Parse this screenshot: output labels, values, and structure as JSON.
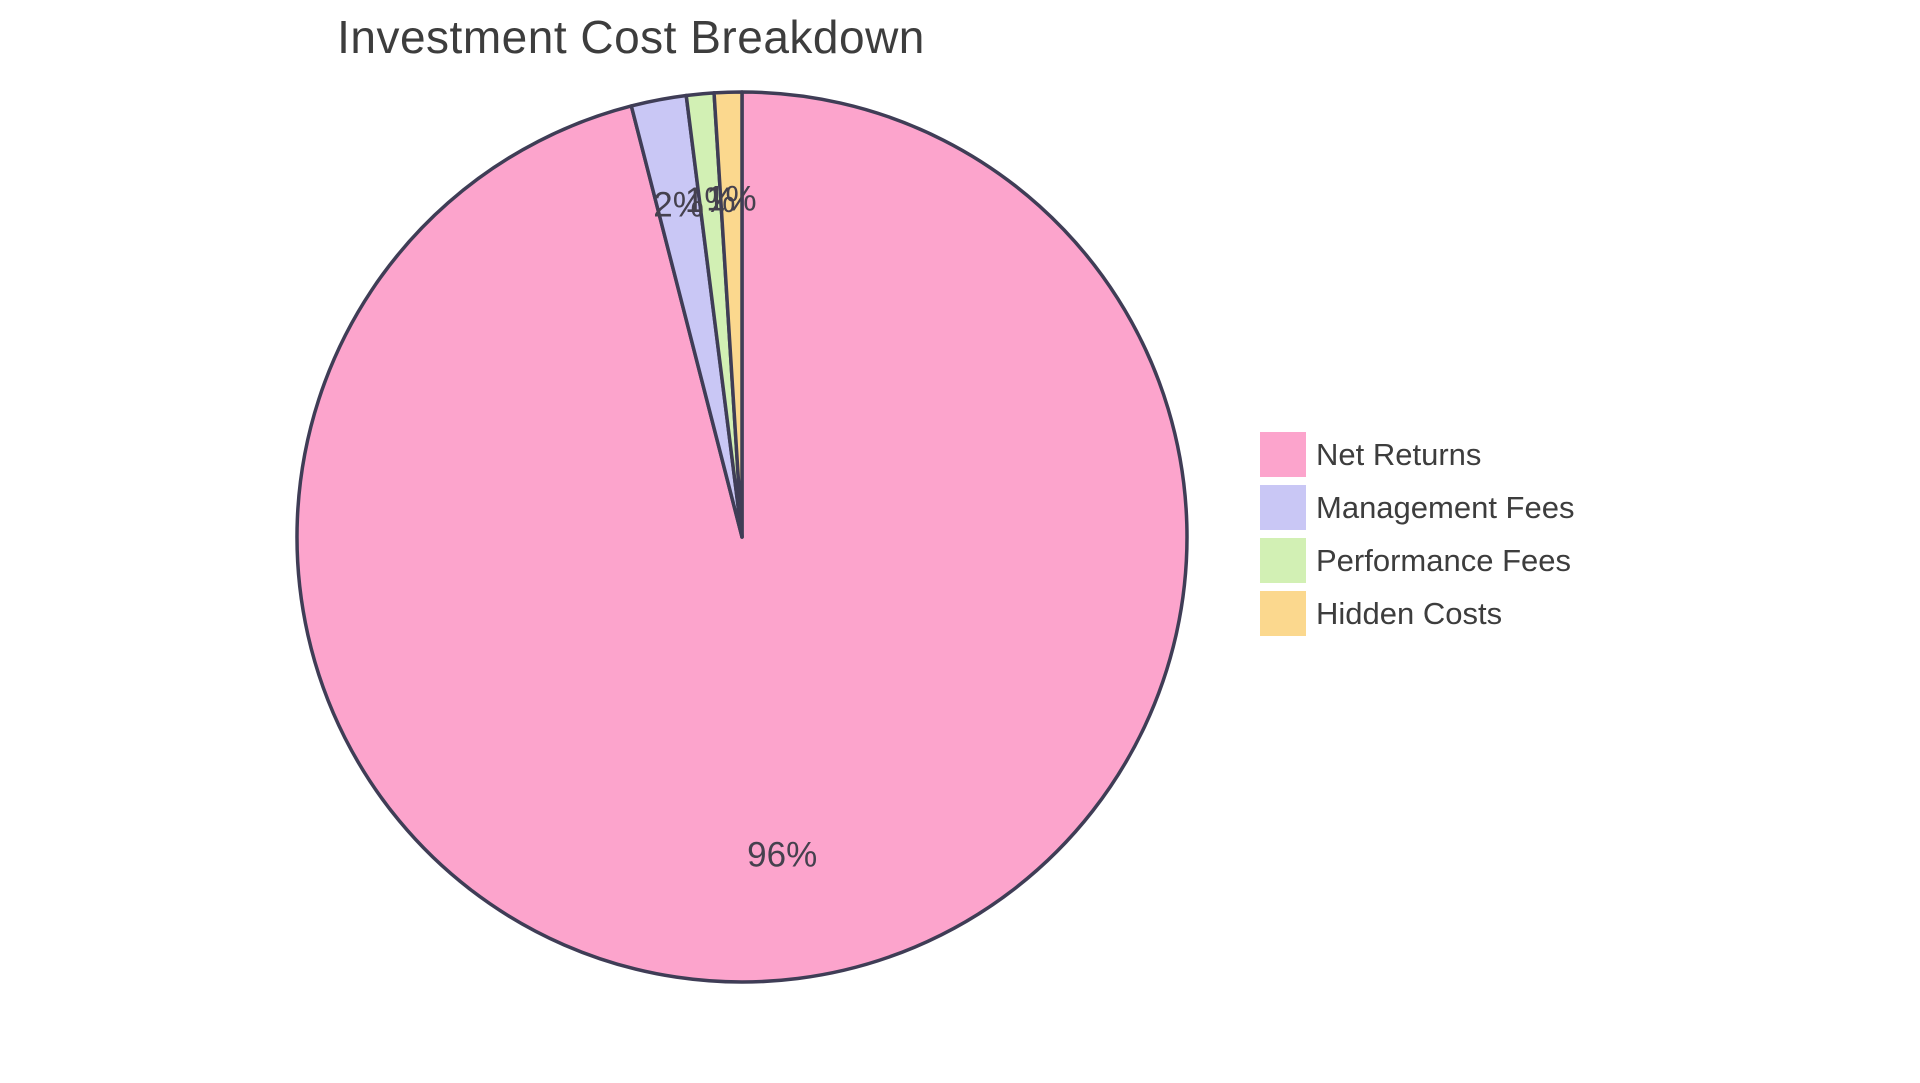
{
  "chart_data": {
    "type": "pie",
    "title": "Investment Cost Breakdown",
    "slices": [
      {
        "label": "Net Returns",
        "value": 96,
        "pct_label": "96%",
        "color": "#FCA4CC"
      },
      {
        "label": "Management Fees",
        "value": 2,
        "pct_label": "2%",
        "color": "#C9C7F5"
      },
      {
        "label": "Performance Fees",
        "value": 1,
        "pct_label": "1%",
        "color": "#D2F0B4"
      },
      {
        "label": "Hidden Costs",
        "value": 1,
        "pct_label": "1%",
        "color": "#FBD88E"
      }
    ],
    "start_angle": "12-oclock",
    "direction": "clockwise",
    "legend_position": "right",
    "grid": "off",
    "stroke_color": "#3F3D56",
    "label_color": "#45414E",
    "title_color": "#3D3D3D",
    "legend_text_color": "#3D3D3D",
    "background_color": "#FFFFFF"
  }
}
